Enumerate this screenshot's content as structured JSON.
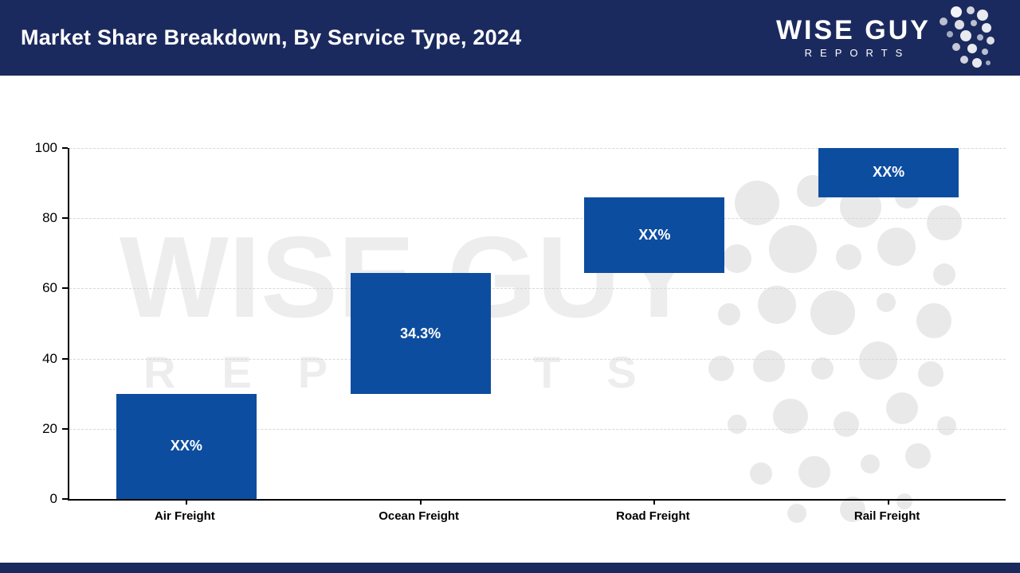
{
  "header": {
    "title": "Market Share Breakdown, By Service Type, 2024",
    "logo": {
      "line1": "WISE GUY",
      "line2": "REPORTS"
    }
  },
  "watermark": {
    "line1": "WISE GUY",
    "line2": "REPORTS"
  },
  "colors": {
    "header_bg": "#1b2a5e",
    "bar": "#0d4da0",
    "bar_label": "#ffffff",
    "watermark": "#ededed",
    "gridline": "#d8d8d8"
  },
  "chart_data": {
    "type": "bar",
    "subtype": "floating-waterfall",
    "title": "Market Share Breakdown, By Service Type, 2024",
    "categories": [
      "Air Freight",
      "Ocean Freight",
      "Road Freight",
      "Rail Freight"
    ],
    "series": [
      {
        "name": "Market Share (%)",
        "ranges": [
          [
            0,
            30
          ],
          [
            30,
            64.3
          ],
          [
            64.3,
            86
          ],
          [
            86,
            100
          ]
        ]
      }
    ],
    "bar_labels": [
      "XX%",
      "34.3%",
      "XX%",
      "XX%"
    ],
    "xlabel": "",
    "ylabel": "",
    "ylim": [
      0,
      100
    ],
    "yticks": [
      0,
      20,
      40,
      60,
      80,
      100
    ],
    "grid": "dashed horizontal",
    "legend": "none"
  }
}
